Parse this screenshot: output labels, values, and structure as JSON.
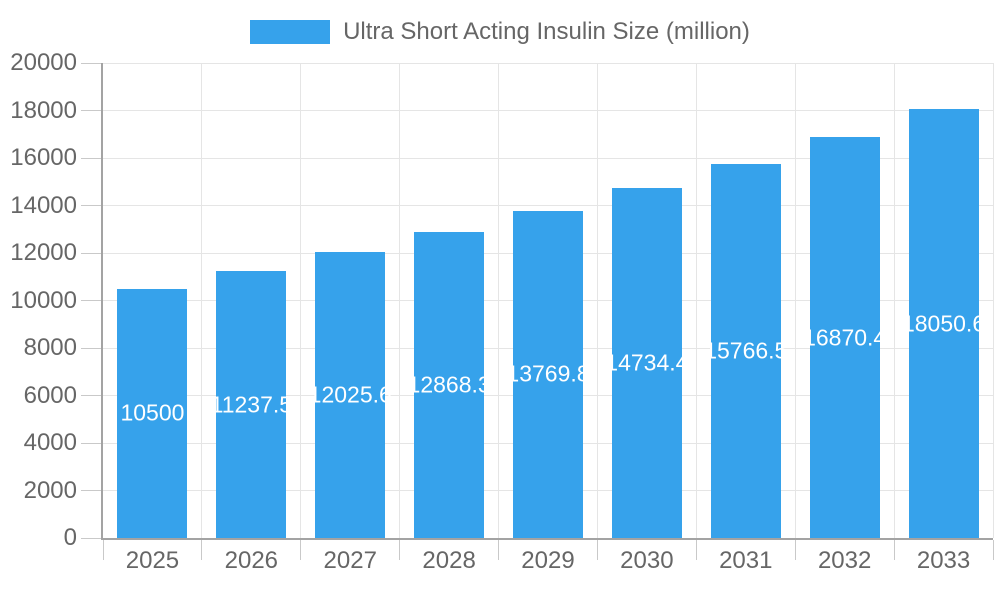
{
  "legend": {
    "label": "Ultra Short Acting Insulin Size (million)"
  },
  "colors": {
    "bar": "#36A2EB",
    "gridline": "#E5E5E5",
    "axis_line": "#A3A3A3",
    "tick_mark": "#C9C9C9",
    "axis_label": "#666666",
    "legend_text": "#666666",
    "bar_value_label": "#FFFFFF",
    "background": "#FFFFFF"
  },
  "chart_data": {
    "type": "bar",
    "title": "",
    "categories": [
      "2025",
      "2026",
      "2027",
      "2028",
      "2029",
      "2030",
      "2031",
      "2032",
      "2033"
    ],
    "series": [
      {
        "name": "Ultra Short Acting Insulin Size (million)",
        "values": [
          10500,
          11237.5,
          12025.6,
          12868.3,
          13769.8,
          14734.4,
          15766.5,
          16870.4,
          18050.6
        ]
      }
    ],
    "value_labels": [
      "10500",
      "11237.5",
      "12025.6",
      "12868.3",
      "13769.8",
      "14734.4",
      "15766.5",
      "16870.4",
      "18050.6"
    ],
    "value_labels_position": "inside-center",
    "xlabel": "",
    "ylabel": "",
    "ylim": [
      0,
      20000
    ],
    "ytick_step": 2000,
    "ytick_labels": [
      "0",
      "2000",
      "4000",
      "6000",
      "8000",
      "10000",
      "12000",
      "14000",
      "16000",
      "18000",
      "20000"
    ],
    "grid": true,
    "legend_position": "top"
  }
}
